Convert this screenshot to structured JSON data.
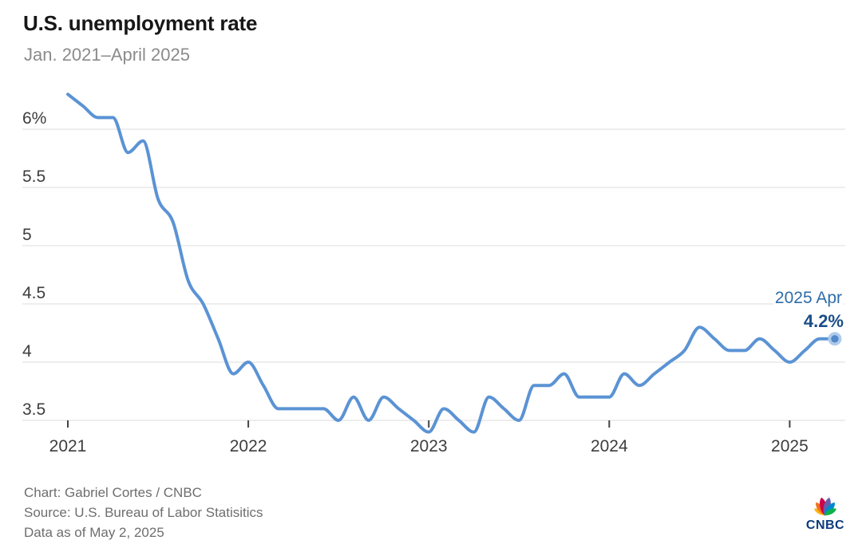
{
  "header": {
    "title": "U.S. unemployment rate",
    "subtitle": "Jan. 2021–April 2025"
  },
  "chart_data": {
    "type": "line",
    "title": "U.S. unemployment rate",
    "subtitle": "Jan. 2021–April 2025",
    "unit": "percent",
    "frequency": "monthly",
    "x_start": "2021-01",
    "x_end": "2025-04",
    "series": [
      {
        "name": "U.S. unemployment rate",
        "values": [
          6.3,
          6.2,
          6.1,
          6.1,
          5.8,
          5.9,
          5.4,
          5.2,
          4.7,
          4.5,
          4.2,
          3.9,
          4.0,
          3.8,
          3.6,
          3.6,
          3.6,
          3.6,
          3.5,
          3.7,
          3.5,
          3.7,
          3.6,
          3.5,
          3.4,
          3.6,
          3.5,
          3.4,
          3.7,
          3.6,
          3.5,
          3.8,
          3.8,
          3.9,
          3.7,
          3.7,
          3.7,
          3.9,
          3.8,
          3.9,
          4.0,
          4.1,
          4.3,
          4.2,
          4.1,
          4.1,
          4.2,
          4.1,
          4.0,
          4.1,
          4.2,
          4.2
        ]
      }
    ],
    "x_tick_labels": [
      "2021",
      "2022",
      "2023",
      "2024",
      "2025"
    ],
    "y_tick_labels": [
      "6%",
      "5.5",
      "5",
      "4.5",
      "4",
      "3.5"
    ],
    "y_tick_values": [
      6,
      5.5,
      5,
      4.5,
      4,
      3.5
    ],
    "ylim": [
      3.3,
      6.45
    ],
    "grid": "horizontal",
    "legend": "none",
    "annotation": {
      "date_label": "2025 Apr",
      "value_label": "4.2%"
    }
  },
  "footer": {
    "line1": "Chart: Gabriel Cortes / CNBC",
    "line2": "Source: U.S. Bureau of Labor Statisitics",
    "line3": "Data as of May 2, 2025"
  },
  "logo": {
    "wordmark": "CNBC"
  },
  "colors": {
    "line": "#5b93d4",
    "endpoint_inner": "#5388c9",
    "endpoint_halo": "#aecbec",
    "annotation_date": "#2e6ca8",
    "annotation_value": "#1b4e87",
    "title": "#171717",
    "subtitle": "#8b8b8b",
    "axis_text": "#3d3d3d",
    "gridline": "#dcdcdc",
    "tick": "#444444",
    "footer_text": "#6e6e6e",
    "logo_navy": "#0c3b7c",
    "peacock": {
      "yellow": "#fcb711",
      "orange": "#f37021",
      "red": "#cc004c",
      "purple": "#6460aa",
      "blue": "#0089d0",
      "green": "#0db14b"
    }
  }
}
